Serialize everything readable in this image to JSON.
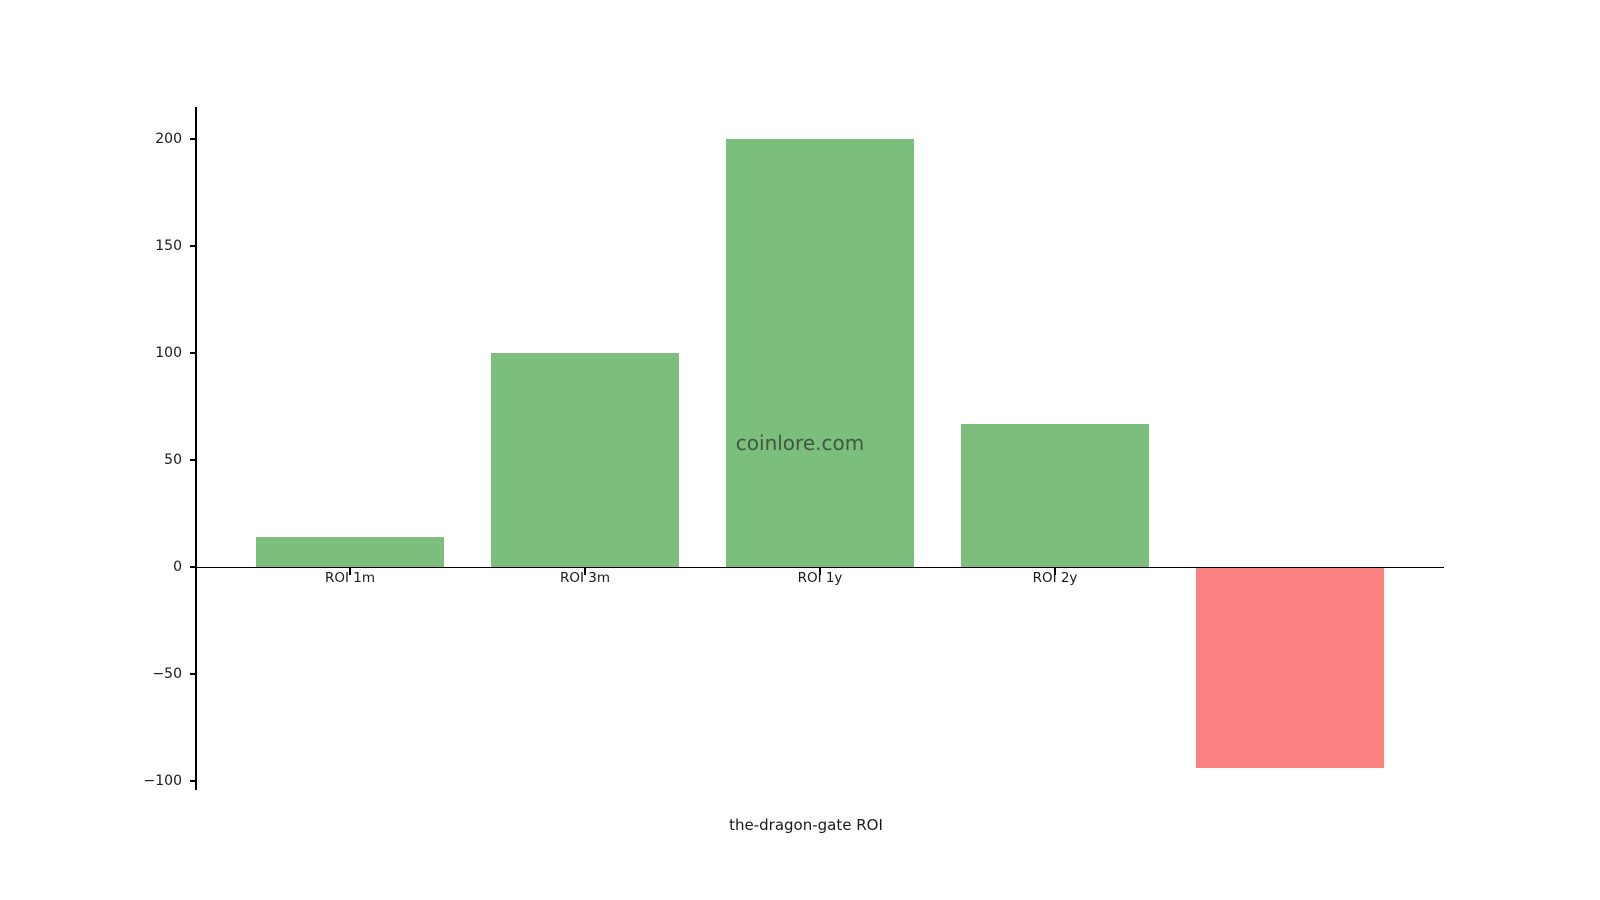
{
  "chart_data": {
    "type": "bar",
    "title": "the-dragon-gate ROI",
    "watermark": "coinlore.com",
    "categories": [
      "ROI 1m",
      "ROI 3m",
      "ROI 1y",
      "ROI 2y",
      ""
    ],
    "values": [
      14,
      100,
      200,
      67,
      -94
    ],
    "positive_color": "#7cbf7c",
    "negative_color": "#fc8181",
    "axis_color": "#000000",
    "y_ticks": [
      200,
      150,
      100,
      50,
      0,
      -50,
      -100
    ],
    "ylim": [
      -109,
      215
    ],
    "xlabel": "",
    "ylabel": "",
    "grid": false,
    "legend": null,
    "notes": "single series; green bars positive ROI, red bar negative ROI; no label or visible tick for fifth (red) bar"
  }
}
